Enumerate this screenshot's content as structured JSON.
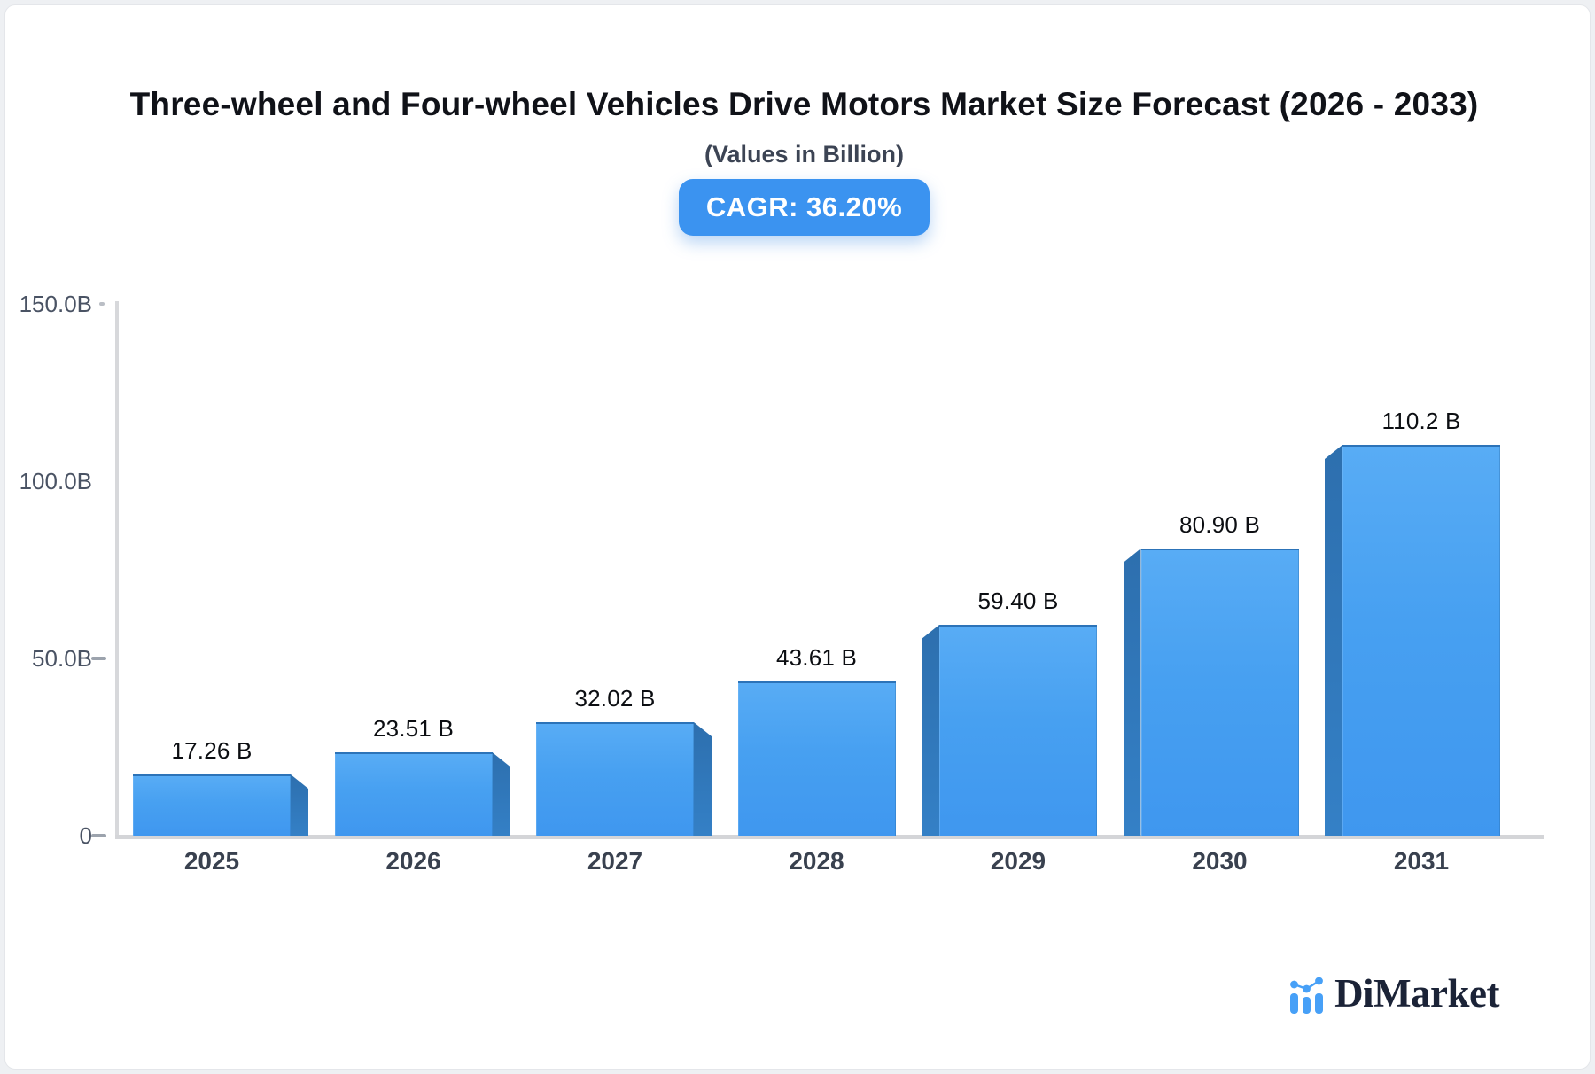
{
  "page": {
    "background": "#eef0f3",
    "card_background": "#ffffff"
  },
  "header": {
    "title": "Three-wheel and Four-wheel Vehicles Drive Motors Market Size Forecast (2026 - 2033)",
    "subtitle": "(Values in Billion)",
    "cagr_badge": "CAGR: 36.20%",
    "badge_color": "#3b93f0"
  },
  "chart_data": {
    "type": "bar",
    "title": "Three-wheel and Four-wheel Vehicles Drive Motors Market Size Forecast (2026 - 2033)",
    "subtitle": "(Values in Billion)",
    "annotation": "CAGR: 36.20%",
    "categories": [
      "2025",
      "2026",
      "2027",
      "2028",
      "2029",
      "2030",
      "2031"
    ],
    "values": [
      17.26,
      23.51,
      32.02,
      43.61,
      59.4,
      80.9,
      110.2
    ],
    "value_labels": [
      "17.26 B",
      "23.51 B",
      "32.02 B",
      "43.61 B",
      "59.40 B",
      "80.90 B",
      "110.2 B"
    ],
    "xlabel": "",
    "ylabel": "",
    "ylim": [
      0,
      150
    ],
    "y_ticks": [
      {
        "label": "150.0B",
        "value": 150,
        "dash": "dot"
      },
      {
        "label": "100.0B",
        "value": 100,
        "dash": "none"
      },
      {
        "label": "50.0B",
        "value": 50,
        "dash": "line"
      },
      {
        "label": "0",
        "value": 0,
        "dash": "line"
      }
    ],
    "grid": false,
    "legend": false,
    "bar_color_top": "#58acf5",
    "bar_color_bottom": "#3f97ef",
    "bar_side_color": "#2e72b4",
    "style": "3d-perspective-bars"
  },
  "footer": {
    "brand": "DiMarket",
    "brand_color": "#1b2337",
    "logo_icon": "mini-bar-line-chart-icon",
    "logo_color": "#47a0f7"
  }
}
